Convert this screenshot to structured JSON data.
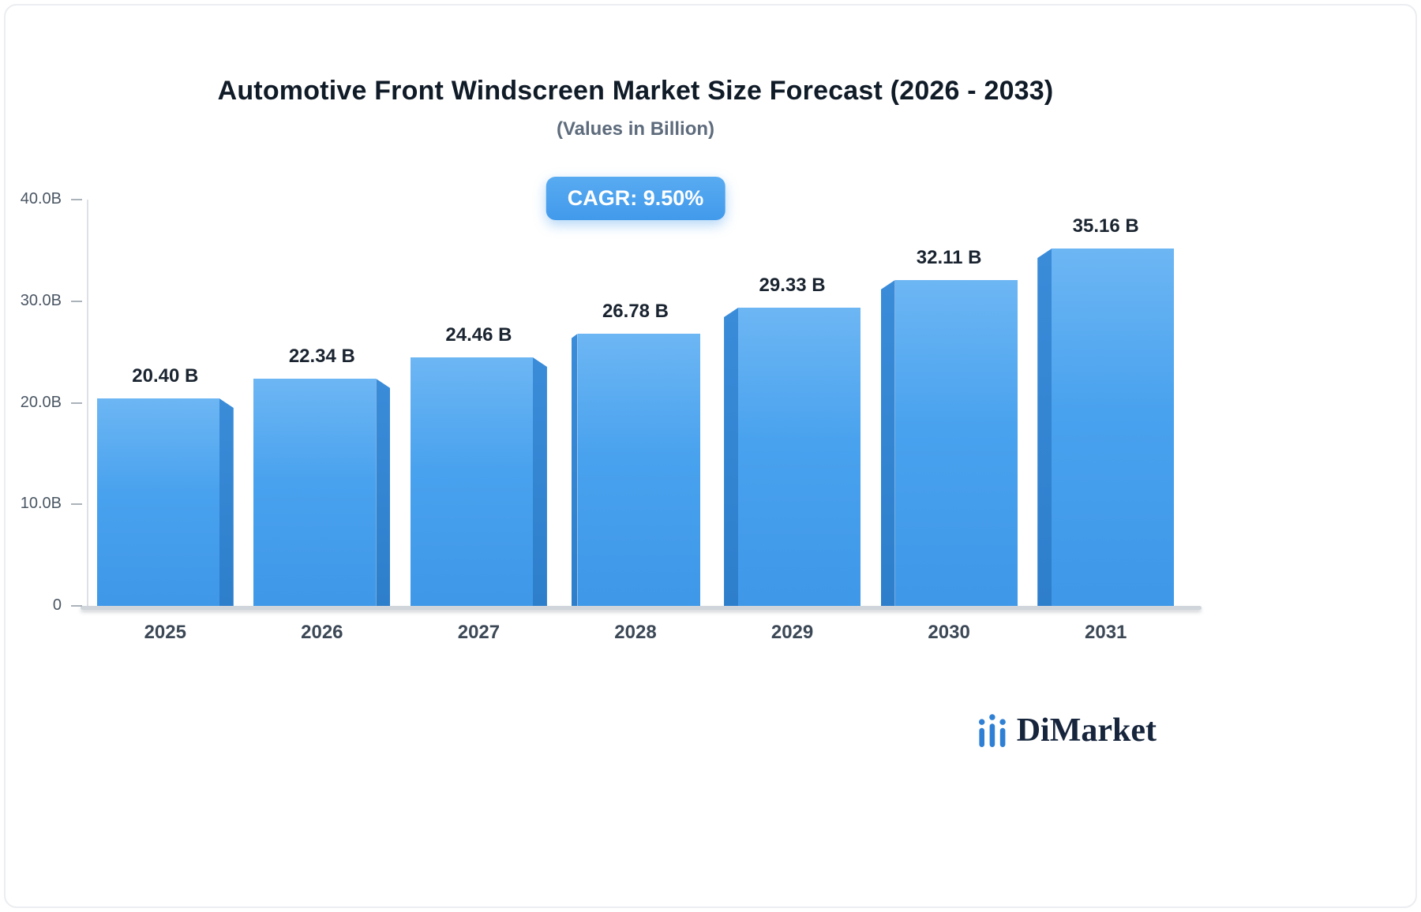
{
  "chart_data": {
    "type": "bar",
    "title": "Automotive Front Windscreen Market Size Forecast (2026 - 2033)",
    "subtitle": "(Values in Billion)",
    "annotation": "CAGR: 9.50%",
    "categories": [
      "2025",
      "2026",
      "2027",
      "2028",
      "2029",
      "2030",
      "2031"
    ],
    "values": [
      20.4,
      22.34,
      24.46,
      26.78,
      29.33,
      32.11,
      35.16
    ],
    "value_labels": [
      "20.40 B",
      "22.34 B",
      "24.46 B",
      "26.78 B",
      "29.33 B",
      "32.11 B",
      "35.16 B"
    ],
    "ylim": [
      0,
      40
    ],
    "y_ticks": [
      {
        "value": 40,
        "label": "40.0B"
      },
      {
        "value": 30,
        "label": "30.0B"
      },
      {
        "value": 20,
        "label": "20.0B"
      },
      {
        "value": 10,
        "label": "10.0B"
      },
      {
        "value": 0,
        "label": "0"
      }
    ],
    "grid": false,
    "legend": false,
    "bar_color": "#49a2ee",
    "bar_side_color": "#2d7ecb",
    "accent_color": "#429aeb"
  },
  "branding": {
    "logo_text": "DiMarket",
    "logo_icon": "bar-chart-icon",
    "logo_icon_color": "#2f80d4",
    "logo_text_color": "#16253c"
  }
}
